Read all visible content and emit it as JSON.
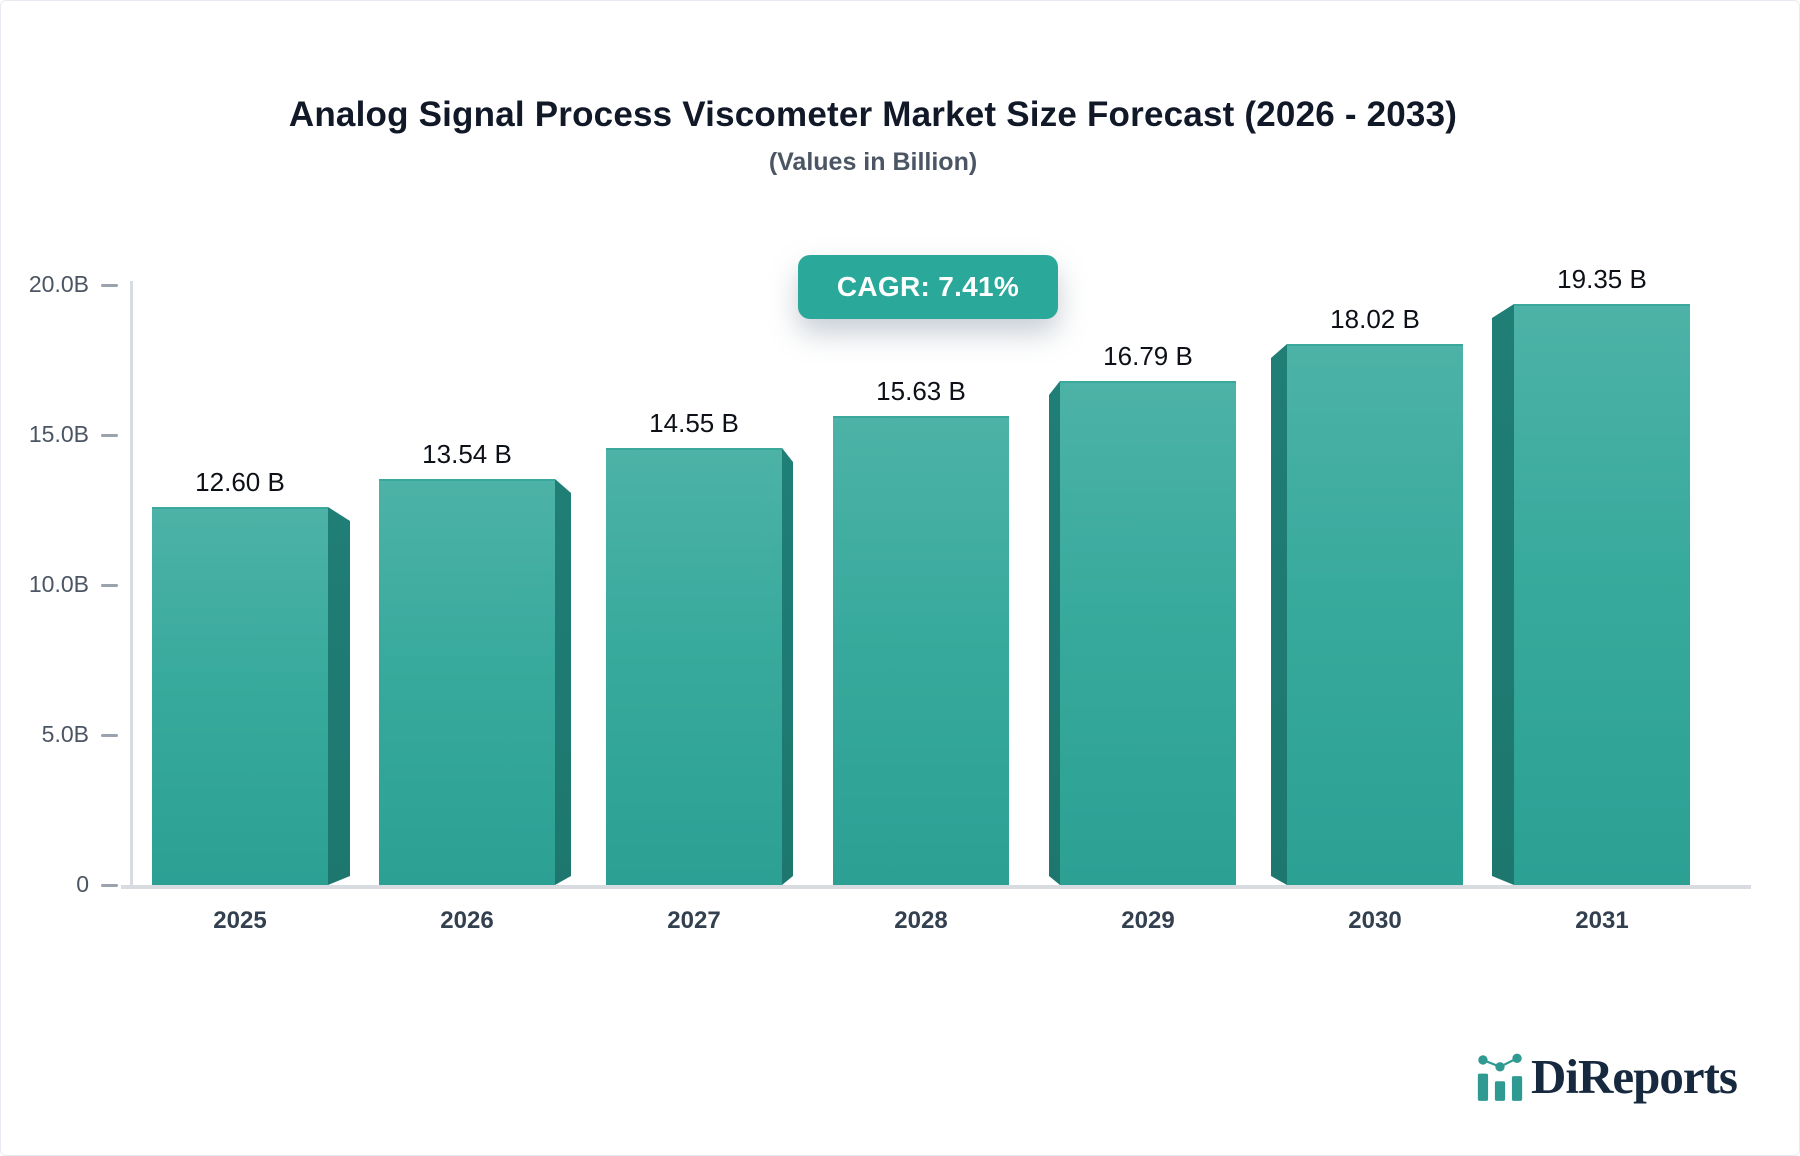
{
  "chart_data": {
    "type": "bar",
    "title": "Analog Signal Process Viscometer Market Size Forecast (2026 - 2033)",
    "subtitle": "(Values in Billion)",
    "cagr_label": "CAGR: 7.41%",
    "categories": [
      "2025",
      "2026",
      "2027",
      "2028",
      "2029",
      "2030",
      "2031"
    ],
    "values": [
      12.6,
      13.54,
      14.55,
      15.63,
      16.79,
      18.02,
      19.35
    ],
    "value_labels": [
      "12.60 B",
      "13.54 B",
      "14.55 B",
      "15.63 B",
      "16.79 B",
      "18.02 B",
      "19.35 B"
    ],
    "ylim": [
      0,
      20
    ],
    "yticks": [
      {
        "value": 20,
        "label": "20.0B"
      },
      {
        "value": 15,
        "label": "15.0B"
      },
      {
        "value": 10,
        "label": "10.0B"
      },
      {
        "value": 5,
        "label": "5.0B"
      },
      {
        "value": 0,
        "label": "0"
      }
    ],
    "grid": false,
    "legend": "none",
    "bar_style": {
      "effect": "3d-perspective-extrusion",
      "face_gradient_top": "#4db2a7",
      "face_gradient_bottom": "#2ba093",
      "side_color": "#1f7e76"
    }
  },
  "badge": {
    "color": "#2aa99b"
  },
  "axes": {
    "axis_line_color": "#d8dbdf",
    "tick_color": "#9aa2ad",
    "ytick_label_color": "#4b5563",
    "xtick_label_color": "#33404f"
  },
  "logo": {
    "text": "DiReports",
    "icon": "mini-bar-chart-icon",
    "text_color": "#16293f",
    "icon_color": "#2e9a92"
  }
}
